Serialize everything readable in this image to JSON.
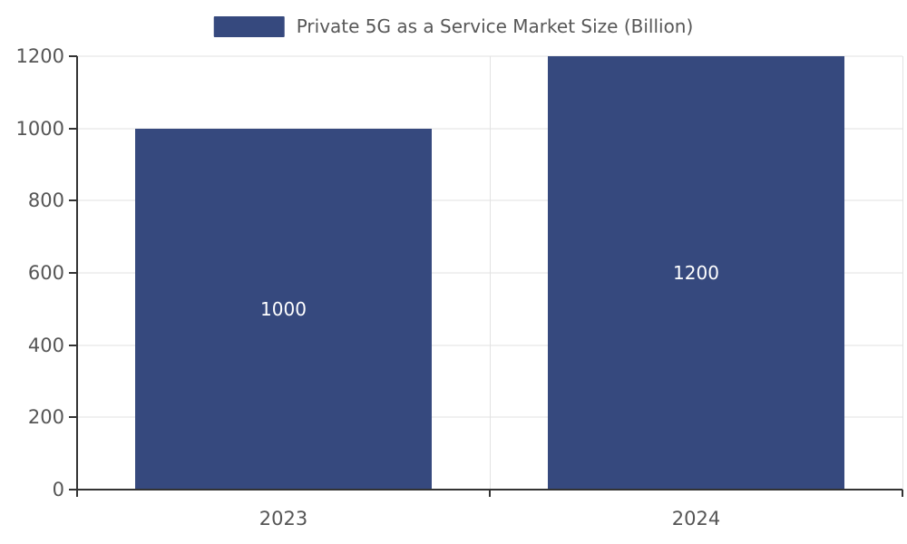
{
  "chart_data": {
    "type": "bar",
    "title": "Private 5G as a Service Market Size (Billion)",
    "categories": [
      "2023",
      "2024"
    ],
    "values": [
      1000,
      1200
    ],
    "series": [
      {
        "name": "Private 5G as a Service Market Size (Billion)",
        "values": [
          1000,
          1200
        ]
      }
    ],
    "data_labels": [
      "1000",
      "1200"
    ],
    "yticks": [
      0,
      200,
      400,
      600,
      800,
      1000,
      1200
    ],
    "ylim": [
      0,
      1200
    ],
    "xlabel": "",
    "ylabel": "",
    "grid": true,
    "legend_position": "top",
    "bar_color": "#36497E",
    "bar_label_color": "#ffffff",
    "axis_color": "#333333",
    "gridline_color": "#e2e2e2",
    "tick_text_color": "#555555",
    "legend_text_color": "#575757"
  }
}
